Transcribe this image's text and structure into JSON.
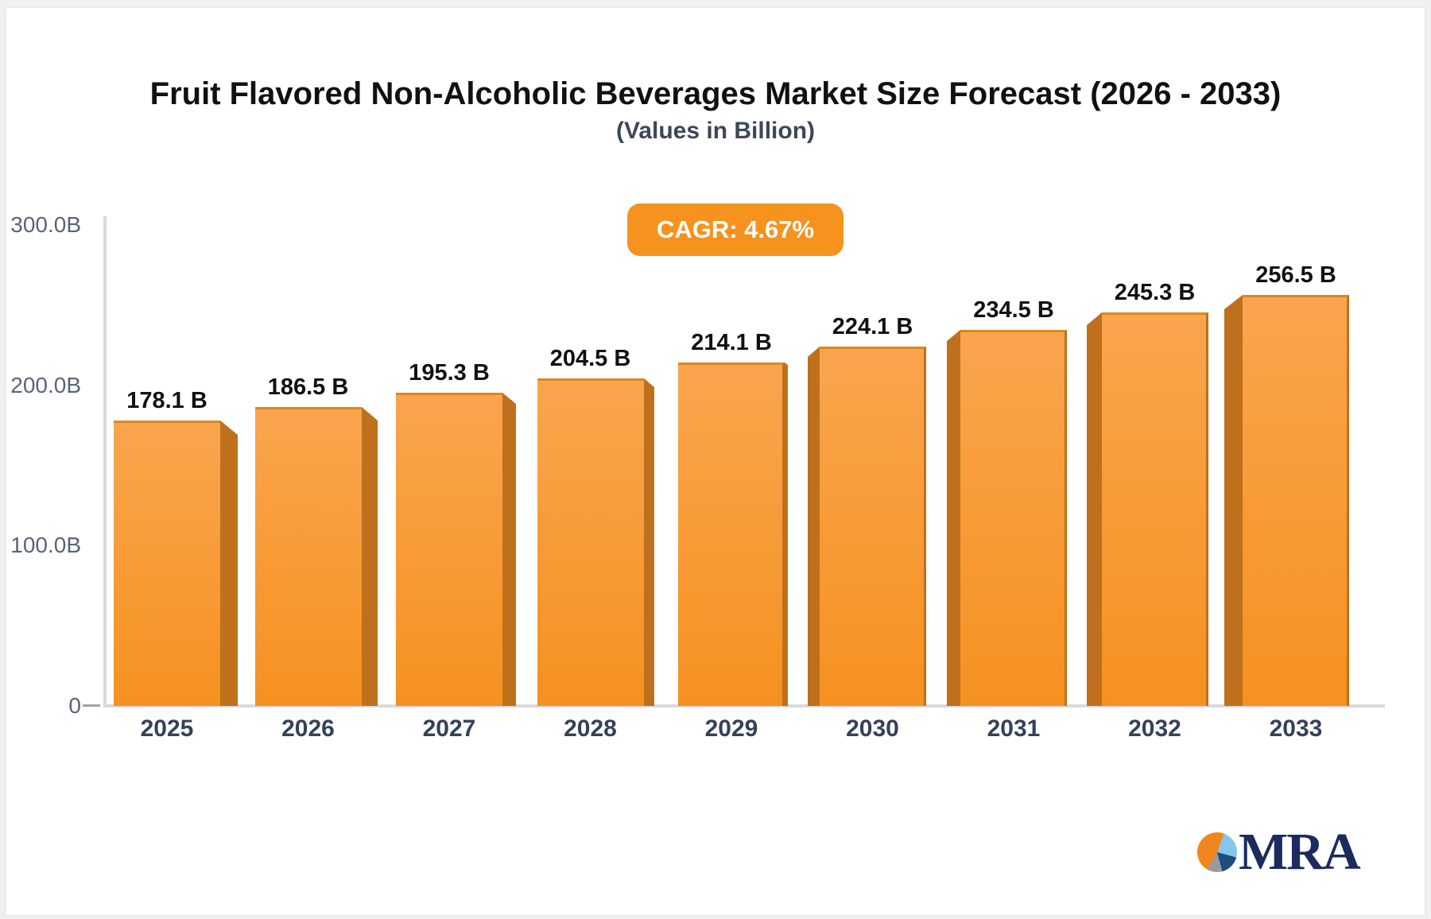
{
  "header": {
    "title": "Fruit Flavored Non-Alcoholic Beverages Market Size Forecast (2026 - 2033)",
    "subtitle": "(Values in Billion)",
    "cagr_label": "CAGR: 4.67%"
  },
  "logo": {
    "text": "MRA"
  },
  "chart_data": {
    "type": "bar",
    "title": "Fruit Flavored Non-Alcoholic Beverages Market Size Forecast (2026 - 2033)",
    "subtitle": "(Values in Billion)",
    "cagr_percent": 4.67,
    "unit": "Billion",
    "categories": [
      "2025",
      "2026",
      "2027",
      "2028",
      "2029",
      "2030",
      "2031",
      "2032",
      "2033"
    ],
    "values": [
      178.1,
      186.5,
      195.3,
      204.5,
      214.1,
      224.1,
      234.5,
      245.3,
      256.5
    ],
    "value_labels": [
      "178.1 B",
      "186.5 B",
      "195.3 B",
      "204.5 B",
      "214.1 B",
      "224.1 B",
      "234.5 B",
      "245.3 B",
      "256.5 B"
    ],
    "y_ticks": [
      {
        "label": "300.0B",
        "value": 300
      },
      {
        "label": "200.0B",
        "value": 200
      },
      {
        "label": "100.0B",
        "value": 100
      },
      {
        "label": "0",
        "value": 0
      }
    ],
    "ylim": [
      0,
      300
    ],
    "grid": false,
    "legend": false,
    "bar_style": "3d-extruded",
    "colors": {
      "bar_face_top": "#f9a54e",
      "bar_face_bottom": "#f69120",
      "bar_face_edge": "#e0851c",
      "bar_side": "#bf701d",
      "axis_line": "#d6d9de",
      "badge_bg": "#f6921e",
      "badge_text": "#ffffff",
      "tick_text": "#5a6475",
      "category_text": "#34415a",
      "value_text": "#111111",
      "logo_navy": "#1b2b5e",
      "logo_orange": "#f1861d",
      "logo_lightblue": "#85c7ea",
      "logo_gray": "#9b9b9b"
    }
  }
}
